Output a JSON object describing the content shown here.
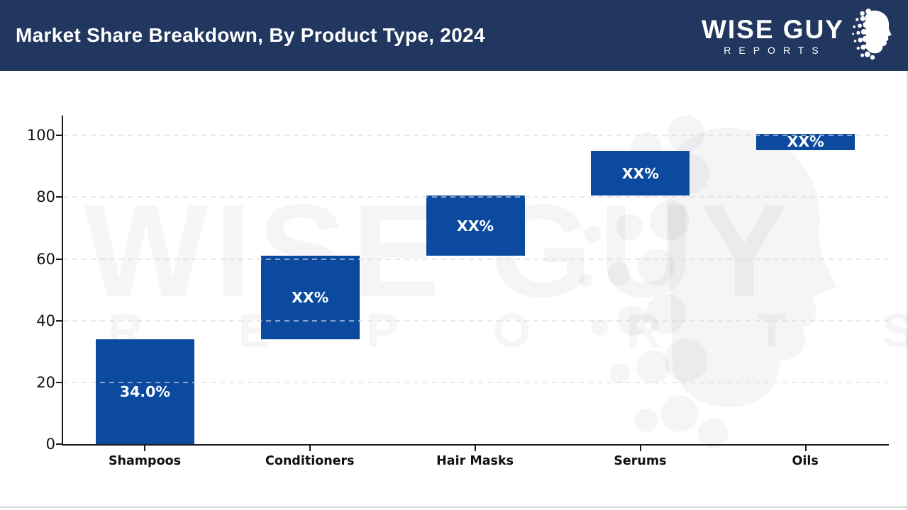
{
  "header": {
    "title": "Market Share Breakdown, By Product Type, 2024",
    "logo": {
      "line1": "WISE GUY",
      "line2": "REPORTS"
    }
  },
  "watermark": {
    "line1": "WISE GUY",
    "line2": "R E P O R T S"
  },
  "chart_data": {
    "type": "bar",
    "subtype": "waterfall (stepped cumulative market share)",
    "title": "Market Share Breakdown, By Product Type, 2024",
    "categories": [
      "Shampoos",
      "Conditioners",
      "Hair Masks",
      "Serums",
      "Oils"
    ],
    "segments": [
      {
        "category": "Shampoos",
        "start": 0,
        "end": 34,
        "value": 34,
        "label": "34.0%"
      },
      {
        "category": "Conditioners",
        "start": 34,
        "end": 61,
        "value": 27,
        "label": "XX%"
      },
      {
        "category": "Hair Masks",
        "start": 61,
        "end": 80.5,
        "value": 19.5,
        "label": "XX%"
      },
      {
        "category": "Serums",
        "start": 80.5,
        "end": 95,
        "value": 14.5,
        "label": "XX%"
      },
      {
        "category": "Oils",
        "start": 95.3,
        "end": 100.6,
        "value": 5.3,
        "label": "XX%"
      }
    ],
    "xlabel": "",
    "ylabel": "",
    "yticks": [
      0,
      20,
      40,
      60,
      80,
      100
    ],
    "ylim": [
      0,
      106.5
    ],
    "grid": {
      "axis": "y",
      "style": "dashed",
      "drawn_over_bars": true
    },
    "legend": null
  },
  "colors": {
    "header_bg": "#22375f",
    "bar": "#0b4a9e",
    "axis": "#1a1a1a",
    "grid": "#e3e3e6",
    "bar_label_text": "#ffffff",
    "tick_text": "#111111",
    "watermark": "rgba(20,25,35,0.042)"
  }
}
